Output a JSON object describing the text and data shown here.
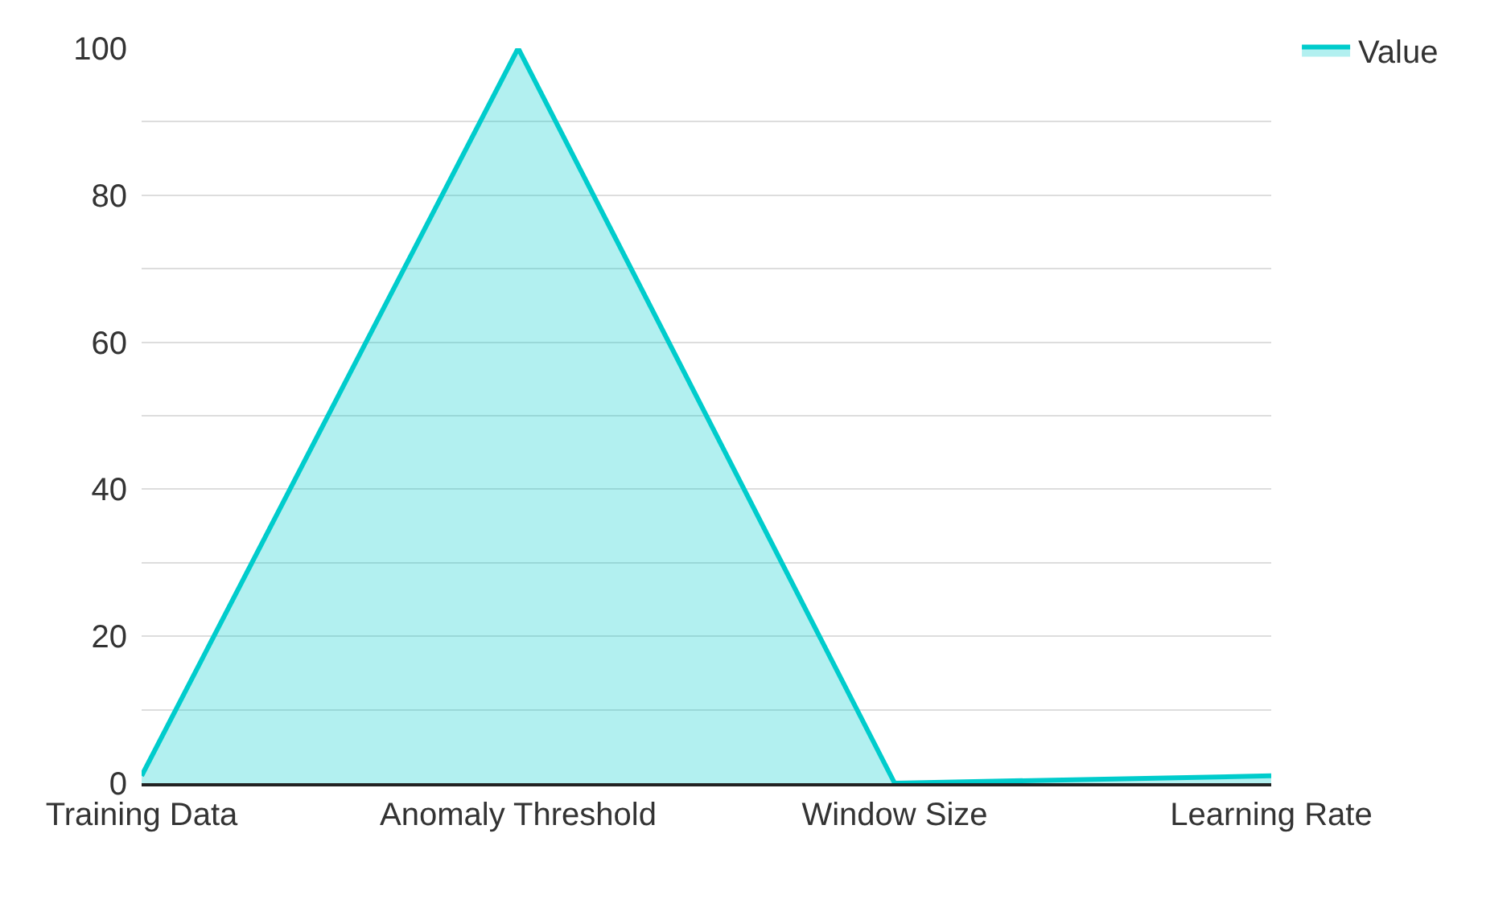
{
  "chart_data": {
    "type": "area",
    "categories": [
      "Training Data",
      "Anomaly Threshold",
      "Window Size",
      "Learning Rate"
    ],
    "series": [
      {
        "name": "Value",
        "color": "#00cccc",
        "values": [
          1,
          100,
          0,
          1
        ]
      }
    ],
    "ylim": [
      0,
      100
    ],
    "yticks": [
      0,
      {
        "value": 10,
        "label": null
      },
      20,
      {
        "value": 30,
        "label": null
      },
      40,
      {
        "value": 50,
        "label": null
      },
      60,
      {
        "value": 70,
        "label": null
      },
      80,
      {
        "value": 90,
        "label": null
      },
      100
    ],
    "grid": "y",
    "legend": "top right",
    "marker": "none",
    "line_style": "solid"
  }
}
